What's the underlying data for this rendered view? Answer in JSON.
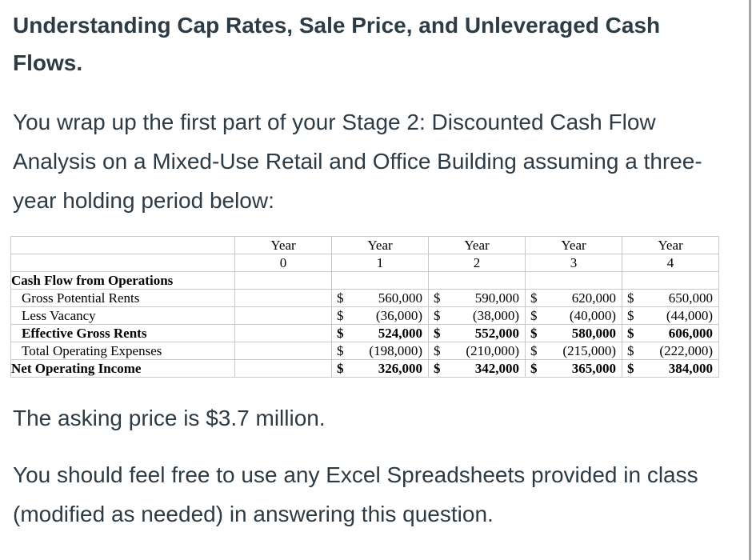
{
  "page": {
    "heading": "Understanding Cap Rates, Sale Price, and Unleveraged Cash Flows.",
    "intro": "You wrap up the first part of your Stage 2: Discounted Cash Flow Analysis on a Mixed-Use Retail and Office Building assuming a three-year holding period below:",
    "asking_price": "The asking price is $3.7 million.",
    "note": "You should feel free to use any Excel Spreadsheets provided in class (modified as needed) in answering this question."
  },
  "table": {
    "year_label": "Year",
    "year_numbers": [
      "0",
      "1",
      "2",
      "3",
      "4"
    ],
    "currency_symbol": "$",
    "rows": [
      {
        "label": "Cash Flow from Operations",
        "indent": false,
        "label_bold": true,
        "values_bold": false,
        "has_values": false,
        "black_bottom": false,
        "values": [
          "",
          "",
          "",
          ""
        ]
      },
      {
        "label": "Gross Potential Rents",
        "indent": true,
        "label_bold": false,
        "values_bold": false,
        "has_values": true,
        "black_bottom": false,
        "values": [
          "560,000",
          "590,000",
          "620,000",
          "650,000"
        ]
      },
      {
        "label": "Less Vacancy",
        "indent": true,
        "label_bold": false,
        "values_bold": false,
        "has_values": true,
        "black_bottom": false,
        "values": [
          "(36,000)",
          "(38,000)",
          "(40,000)",
          "(44,000)"
        ]
      },
      {
        "label": "Effective Gross Rents",
        "indent": true,
        "label_bold": true,
        "values_bold": true,
        "has_values": true,
        "black_bottom": false,
        "values": [
          "524,000",
          "552,000",
          "580,000",
          "606,000"
        ]
      },
      {
        "label": "Total Operating Expenses",
        "indent": true,
        "label_bold": false,
        "values_bold": false,
        "has_values": true,
        "black_bottom": true,
        "values": [
          "(198,000)",
          "(210,000)",
          "(215,000)",
          "(222,000)"
        ]
      },
      {
        "label": "Net Operating Income",
        "indent": false,
        "label_bold": true,
        "values_bold": true,
        "has_values": true,
        "black_bottom": false,
        "values": [
          "326,000",
          "342,000",
          "365,000",
          "384,000"
        ]
      }
    ]
  },
  "colors": {
    "text": "#2d3b45",
    "table_text": "#000000",
    "table_border": "#c9c9c9",
    "table_strong_border": "#262626",
    "scrollbar": "#a6a6a6"
  }
}
